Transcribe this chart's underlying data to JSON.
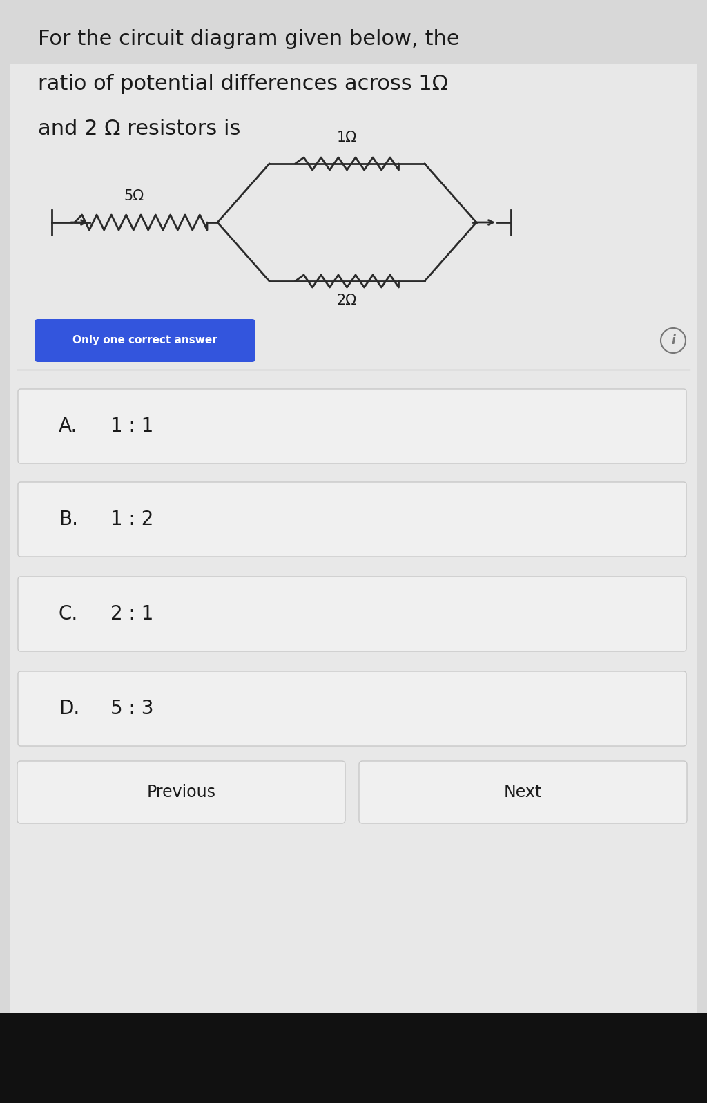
{
  "title_line1": "For the circuit diagram given below, the",
  "title_line2": "ratio of potential differences across 1Ω",
  "title_line3": "and 2 Ω resistors is",
  "background_color": "#d8d8d8",
  "content_bg": "#e8e8e8",
  "option_bg": "#f0f0f0",
  "option_border": "#c8c8c8",
  "badge_color": "#3355dd",
  "badge_text": "Only one correct answer",
  "badge_text_color": "#ffffff",
  "options": [
    {
      "label": "A.",
      "text": "1 : 1"
    },
    {
      "label": "B.",
      "text": "1 : 2"
    },
    {
      "label": "C.",
      "text": "2 : 1"
    },
    {
      "label": "D.",
      "text": "5 : 3"
    }
  ],
  "btn_previous": "Previous",
  "btn_next": "Next",
  "text_color": "#1a1a1a",
  "title_fontsize": 22,
  "option_fontsize": 20,
  "circuit_color": "#2a2a2a"
}
